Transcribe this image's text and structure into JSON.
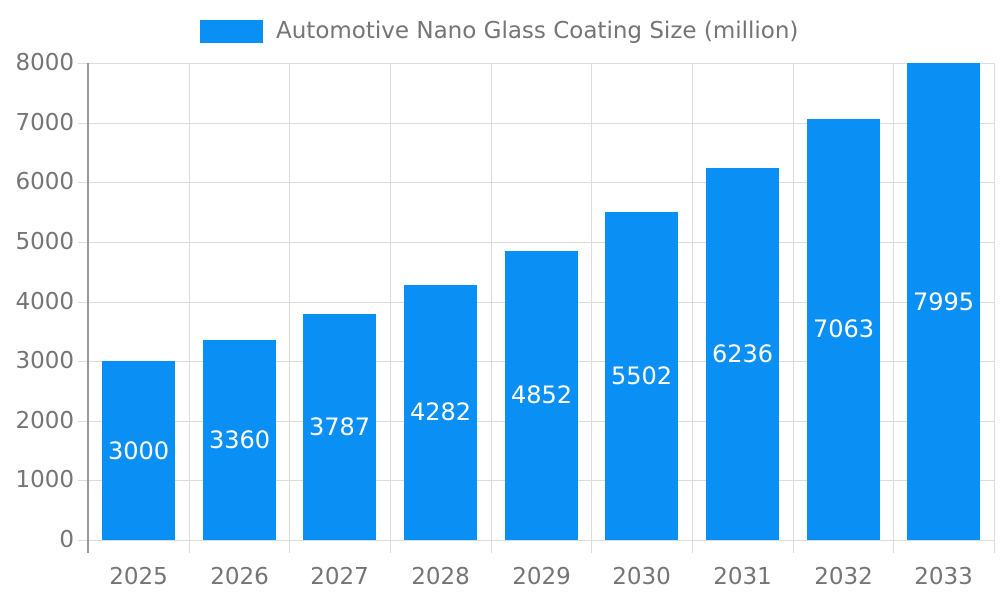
{
  "chart_data": {
    "type": "bar",
    "title": "Automotive Nano Glass Coating Size (million)",
    "categories": [
      "2025",
      "2026",
      "2027",
      "2028",
      "2029",
      "2030",
      "2031",
      "2032",
      "2033"
    ],
    "values": [
      3000,
      3360,
      3787,
      4282,
      4852,
      5502,
      6236,
      7063,
      7995
    ],
    "xlabel": "",
    "ylabel": "",
    "ylim": [
      0,
      8000
    ],
    "ytick_step": 1000,
    "ytick_labels": [
      "0",
      "1000",
      "2000",
      "3000",
      "4000",
      "5000",
      "6000",
      "7000",
      "8000"
    ],
    "grid": true,
    "legend_position": "top",
    "colors": {
      "bar": "#0a90f5",
      "bar_label": "#ffffff",
      "axis_text": "#757575",
      "gridline": "#dcdcdc",
      "axis_line": "#999999",
      "background": "#ffffff"
    }
  }
}
